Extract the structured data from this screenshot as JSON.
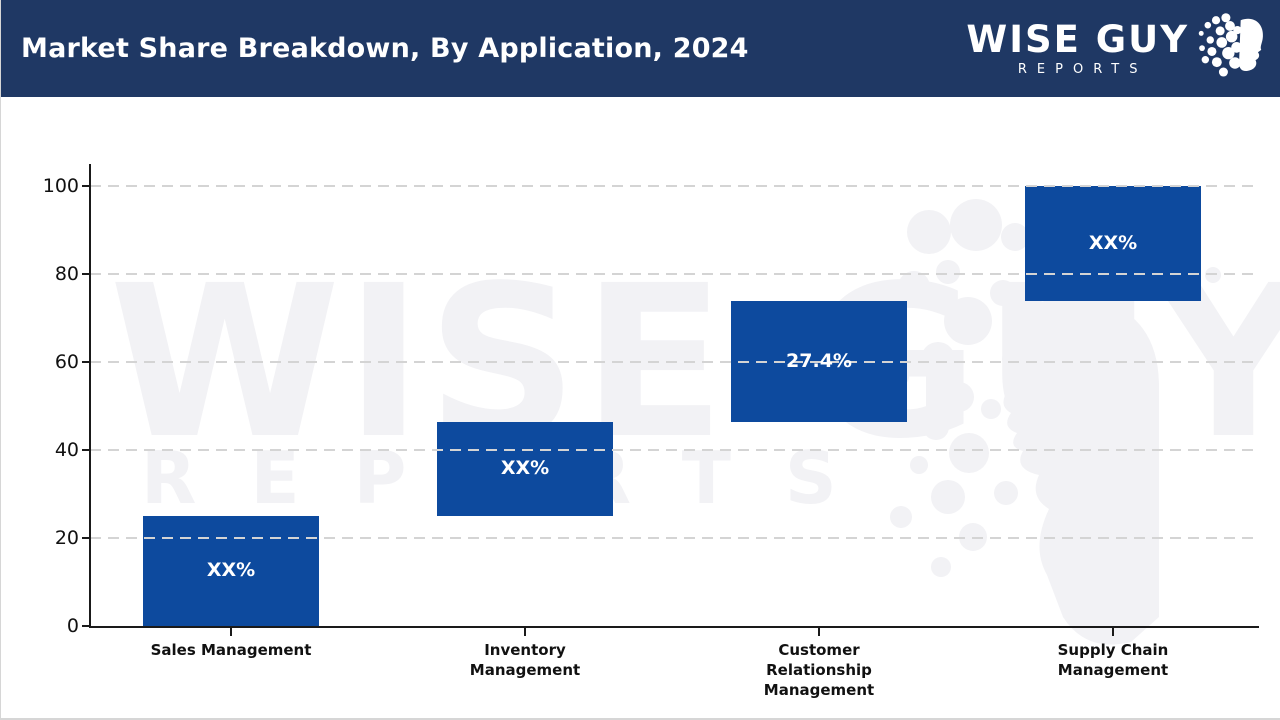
{
  "header": {
    "title": "Market Share Breakdown, By Application, 2024",
    "logo": {
      "line1": "WISE GUY",
      "line2": "REPORTS",
      "icon": "face-profile-dots-icon"
    }
  },
  "watermark": {
    "line1": "WISE GUY",
    "line2": "R E P O R T S",
    "icon": "face-profile-dots-icon"
  },
  "chart_data": {
    "type": "bar",
    "subtype": "waterfall",
    "title": "Market Share Breakdown, By Application, 2024",
    "categories": [
      "Sales Management",
      "Inventory Management",
      "Customer Relationship Management",
      "Supply Chain Management"
    ],
    "category_lines": [
      [
        "Sales Management"
      ],
      [
        "Inventory",
        "Management"
      ],
      [
        "Customer",
        "Relationship",
        "Management"
      ],
      [
        "Supply Chain",
        "Management"
      ]
    ],
    "bars": [
      {
        "category": "Sales Management",
        "start": 0,
        "end": 25.0,
        "label": "XX%"
      },
      {
        "category": "Inventory Management",
        "start": 25.0,
        "end": 46.4,
        "label": "XX%"
      },
      {
        "category": "Customer Relationship Management",
        "start": 46.4,
        "end": 73.8,
        "label": "27.4%"
      },
      {
        "category": "Supply Chain Management",
        "start": 73.8,
        "end": 100.0,
        "label": "XX%"
      }
    ],
    "ylim": [
      0,
      100
    ],
    "yticks": [
      0,
      20,
      40,
      60,
      80,
      100
    ],
    "xlabel": "",
    "ylabel": "",
    "legend": "none",
    "grid": "horizontal-dashed",
    "bar_color": "#0d4a9e",
    "bar_label_color": "#ffffff",
    "gridline_color": "#d4d4d4",
    "axis_color": "#1a1a1a"
  },
  "colors": {
    "header_bg": "#1f3864",
    "page_bg": "#ffffff",
    "watermark": "#f2f2f5"
  }
}
